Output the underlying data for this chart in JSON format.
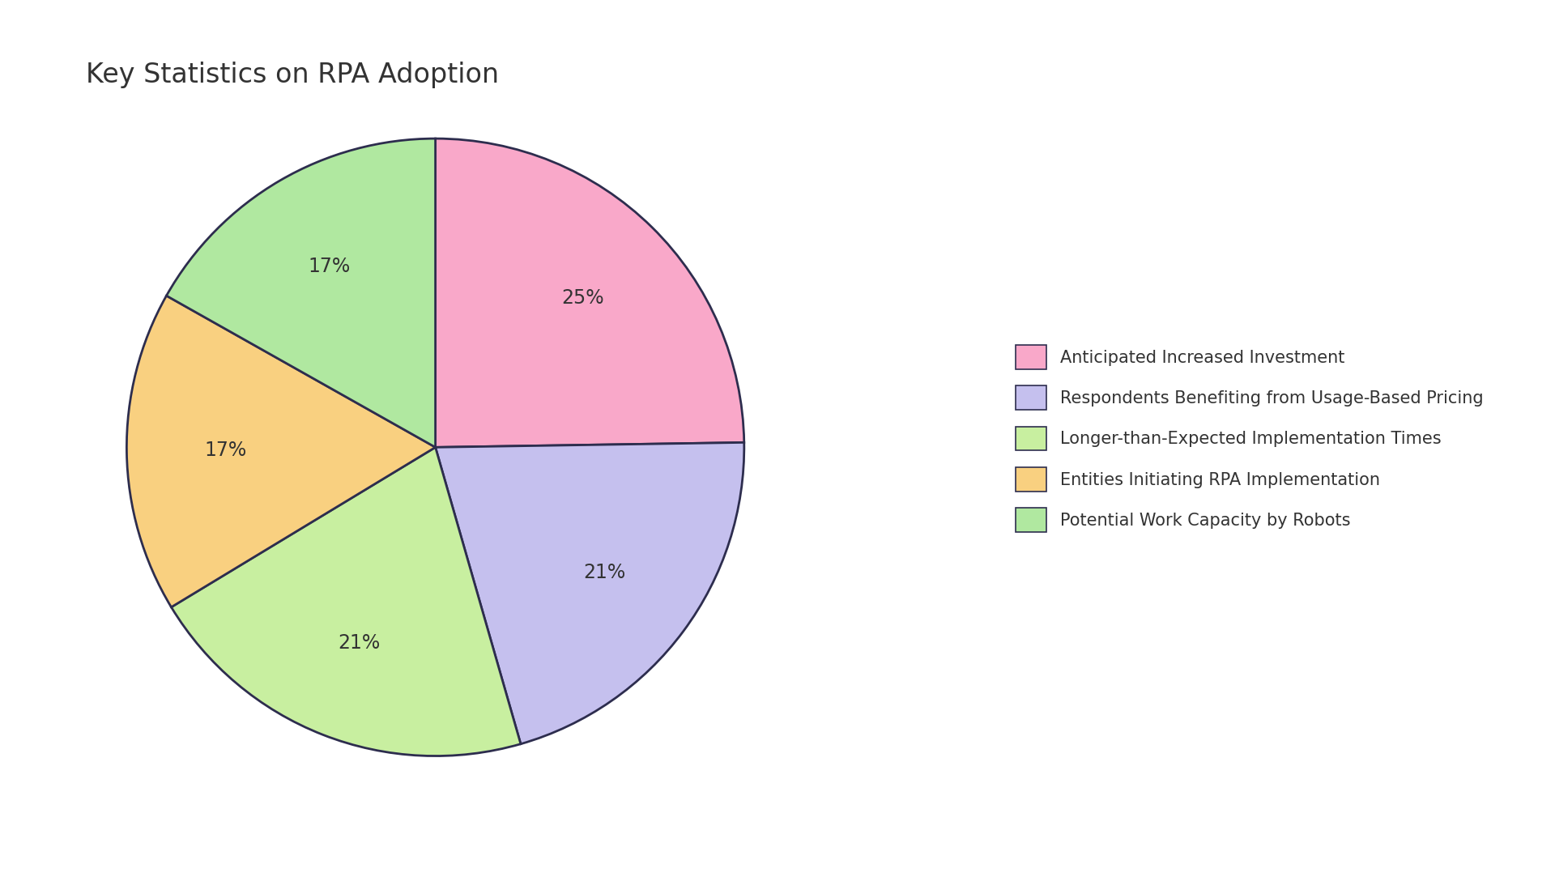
{
  "title": "Key Statistics on RPA Adoption",
  "title_fontsize": 24,
  "title_color": "#333333",
  "background_color": "#ffffff",
  "labels": [
    "Anticipated Increased Investment",
    "Respondents Benefiting from Usage-Based Pricing",
    "Longer-than-Expected Implementation Times",
    "Entities Initiating RPA Implementation",
    "Potential Work Capacity by Robots"
  ],
  "sizes": [
    25,
    21,
    21,
    17,
    17
  ],
  "colors": [
    "#F9A8C9",
    "#C5C0EE",
    "#C8EFA0",
    "#F9D080",
    "#B0E8A0"
  ],
  "wedge_edge_color": "#2d2d4e",
  "wedge_edge_width": 2.0,
  "autopct_fontsize": 17,
  "autopct_color": "#333333",
  "legend_fontsize": 15,
  "startangle": 90,
  "pct_distance": 0.68
}
